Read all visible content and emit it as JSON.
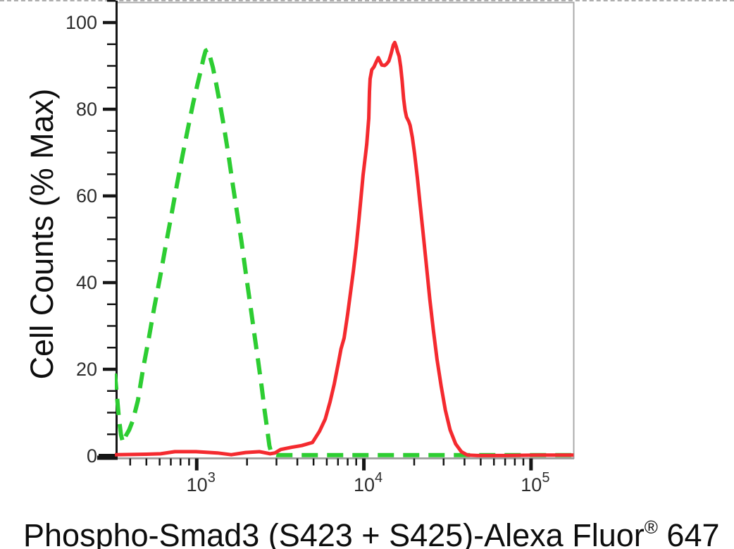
{
  "chart_data": {
    "type": "line",
    "subtype": "flow-cytometry-histogram-overlay",
    "grid": false,
    "legend": "none",
    "x_axis": {
      "scale": "log",
      "min": 330,
      "max": 181000,
      "label_main": "Phospho-Smad3 (S423 + S425)-Alexa Fluor",
      "label_reg": "®",
      "label_suffix": " 647",
      "decade_ticks": [
        {
          "value": 1000,
          "mantissa": "10",
          "exponent": "3"
        },
        {
          "value": 10000,
          "mantissa": "10",
          "exponent": "4"
        },
        {
          "value": 100000,
          "mantissa": "10",
          "exponent": "5"
        }
      ]
    },
    "y_axis": {
      "label": "Cell Counts (% Max)",
      "min": 0,
      "max": 100,
      "axis_top": 105,
      "minor_step": 5,
      "major_ticks": [
        {
          "value": 100,
          "label": "100"
        },
        {
          "value": 80,
          "label": "80"
        },
        {
          "value": 60,
          "label": "60"
        },
        {
          "value": 40,
          "label": "40"
        },
        {
          "value": 20,
          "label": "20"
        },
        {
          "value": 0,
          "label": "0"
        }
      ]
    },
    "colors": {
      "green_series": "#2dcd32",
      "red_series": "#f42a2f",
      "axis": "#161616",
      "tick_label": "#2c2c2c",
      "plot_border": "#ababab",
      "x_baseline": "#9c9c9c"
    },
    "series": [
      {
        "name": "green-dashed-histogram",
        "style": "dashed",
        "color_key": "green_series",
        "points": [
          [
            324,
            19.0
          ],
          [
            333,
            14.1
          ],
          [
            342,
            8.9
          ],
          [
            352,
            4.9
          ],
          [
            362,
            3.1
          ],
          [
            376,
            4.6
          ],
          [
            394,
            6.0
          ],
          [
            415,
            8.2
          ],
          [
            445,
            12.8
          ],
          [
            478,
            20.2
          ],
          [
            517,
            27.2
          ],
          [
            556,
            34.1
          ],
          [
            604,
            41.3
          ],
          [
            652,
            48.5
          ],
          [
            704,
            55.4
          ],
          [
            762,
            62.6
          ],
          [
            823,
            69.4
          ],
          [
            890,
            75.9
          ],
          [
            953,
            81.5
          ],
          [
            1010,
            85.7
          ],
          [
            1060,
            89.1
          ],
          [
            1100,
            91.9
          ],
          [
            1130,
            93.5
          ],
          [
            1170,
            93.8
          ],
          [
            1200,
            92.2
          ],
          [
            1250,
            89.6
          ],
          [
            1310,
            85.7
          ],
          [
            1380,
            81.1
          ],
          [
            1460,
            75.6
          ],
          [
            1550,
            69.4
          ],
          [
            1640,
            62.9
          ],
          [
            1740,
            56.4
          ],
          [
            1850,
            49.6
          ],
          [
            1960,
            42.6
          ],
          [
            2080,
            35.6
          ],
          [
            2200,
            28.8
          ],
          [
            2330,
            22.0
          ],
          [
            2450,
            15.8
          ],
          [
            2550,
            10.4
          ],
          [
            2650,
            5.7
          ],
          [
            2720,
            2.4
          ],
          [
            2800,
            0.5
          ],
          [
            3020,
            0.2
          ],
          [
            4000,
            0.2
          ],
          [
            6000,
            0.2
          ],
          [
            10000,
            0.2
          ],
          [
            20000,
            0.2
          ],
          [
            40000,
            0.2
          ],
          [
            80000,
            0.2
          ],
          [
            150000,
            0.2
          ],
          [
            180000,
            0.2
          ]
        ]
      },
      {
        "name": "red-solid-histogram",
        "style": "solid",
        "color_key": "red_series",
        "points": [
          [
            324,
            0.3
          ],
          [
            500,
            0.4
          ],
          [
            608,
            0.5
          ],
          [
            740,
            1.0
          ],
          [
            990,
            1.0
          ],
          [
            1330,
            0.7
          ],
          [
            1610,
            0.3
          ],
          [
            1960,
            0.8
          ],
          [
            2380,
            1.0
          ],
          [
            2750,
            0.5
          ],
          [
            2940,
            0.7
          ],
          [
            3180,
            1.5
          ],
          [
            3690,
            2.0
          ],
          [
            4250,
            2.4
          ],
          [
            4920,
            3.1
          ],
          [
            5430,
            5.7
          ],
          [
            5870,
            8.5
          ],
          [
            6280,
            12.5
          ],
          [
            6650,
            16.6
          ],
          [
            7040,
            21.5
          ],
          [
            7300,
            24.7
          ],
          [
            7620,
            27.2
          ],
          [
            8000,
            32.8
          ],
          [
            8320,
            37.7
          ],
          [
            8650,
            42.6
          ],
          [
            9000,
            48.3
          ],
          [
            9360,
            54.8
          ],
          [
            9630,
            60.0
          ],
          [
            9900,
            64.9
          ],
          [
            10200,
            69.1
          ],
          [
            10400,
            71.9
          ],
          [
            10700,
            77.9
          ],
          [
            10800,
            84.1
          ],
          [
            10900,
            87.0
          ],
          [
            11150,
            89.1
          ],
          [
            11500,
            89.8
          ],
          [
            11850,
            90.9
          ],
          [
            12200,
            91.9
          ],
          [
            12550,
            90.9
          ],
          [
            12800,
            90.2
          ],
          [
            13300,
            90.1
          ],
          [
            13650,
            90.4
          ],
          [
            14100,
            91.1
          ],
          [
            14550,
            92.8
          ],
          [
            15000,
            94.8
          ],
          [
            15300,
            95.4
          ],
          [
            15600,
            94.5
          ],
          [
            15900,
            93.3
          ],
          [
            16250,
            92.2
          ],
          [
            16600,
            89.8
          ],
          [
            16950,
            86.5
          ],
          [
            17300,
            82.4
          ],
          [
            17650,
            79.7
          ],
          [
            18000,
            78.2
          ],
          [
            18550,
            77.2
          ],
          [
            18900,
            76.3
          ],
          [
            19500,
            73.5
          ],
          [
            20100,
            69.8
          ],
          [
            20900,
            64.2
          ],
          [
            21700,
            58.0
          ],
          [
            22600,
            51.5
          ],
          [
            23700,
            43.7
          ],
          [
            24800,
            36.1
          ],
          [
            26000,
            29.3
          ],
          [
            27400,
            22.3
          ],
          [
            29000,
            16.1
          ],
          [
            30700,
            10.6
          ],
          [
            32800,
            6.0
          ],
          [
            35400,
            2.8
          ],
          [
            38300,
            1.0
          ],
          [
            41700,
            0.2
          ],
          [
            48000,
            0.1
          ],
          [
            70000,
            0.1
          ],
          [
            110000,
            0.2
          ],
          [
            180000,
            0.2
          ]
        ]
      }
    ]
  }
}
